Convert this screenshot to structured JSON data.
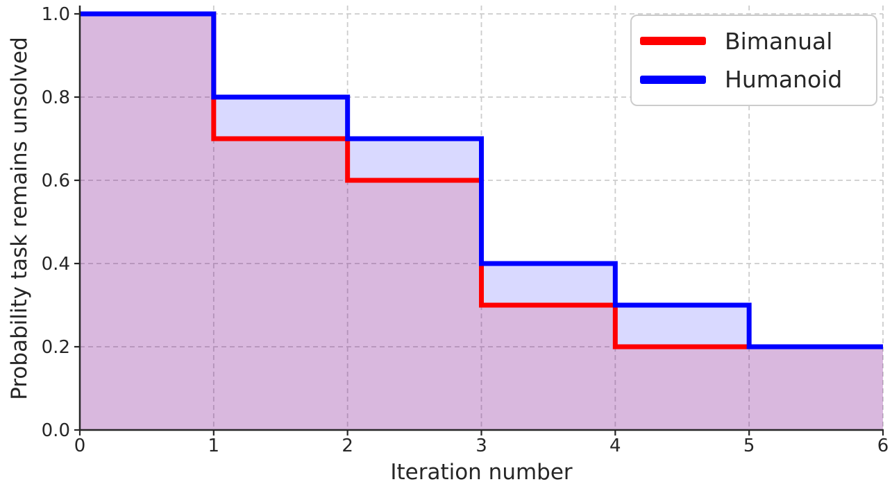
{
  "chart_data": {
    "type": "step",
    "title": "",
    "xlabel": "Iteration number",
    "ylabel": "Probability task remains unsolved",
    "step_style": "post",
    "x": [
      0,
      1,
      2,
      3,
      4,
      5,
      6
    ],
    "series": [
      {
        "name": "Bimanual",
        "color": "#ff0000",
        "values": [
          1.0,
          0.7,
          0.6,
          0.3,
          0.2,
          0.2
        ]
      },
      {
        "name": "Humanoid",
        "color": "#0000ff",
        "values": [
          1.0,
          0.8,
          0.7,
          0.4,
          0.3,
          0.2
        ]
      }
    ],
    "fill_opacity": 0.15,
    "xlim": [
      0,
      6
    ],
    "ylim": [
      0,
      1.0
    ],
    "xticks": {
      "values": [
        0,
        1,
        2,
        3,
        4,
        5,
        6
      ],
      "labels": [
        "0",
        "1",
        "2",
        "3",
        "4",
        "5",
        "6"
      ]
    },
    "yticks": {
      "values": [
        0,
        0.2,
        0.4,
        0.6,
        0.8,
        1.0
      ],
      "labels": [
        "0.0",
        "0.2",
        "0.4",
        "0.6",
        "0.8",
        "1.0"
      ]
    },
    "grid": true,
    "grid_color": "#cccccc",
    "spine_color": "#262626",
    "background": "#ffffff",
    "legend_position": "upper right"
  }
}
